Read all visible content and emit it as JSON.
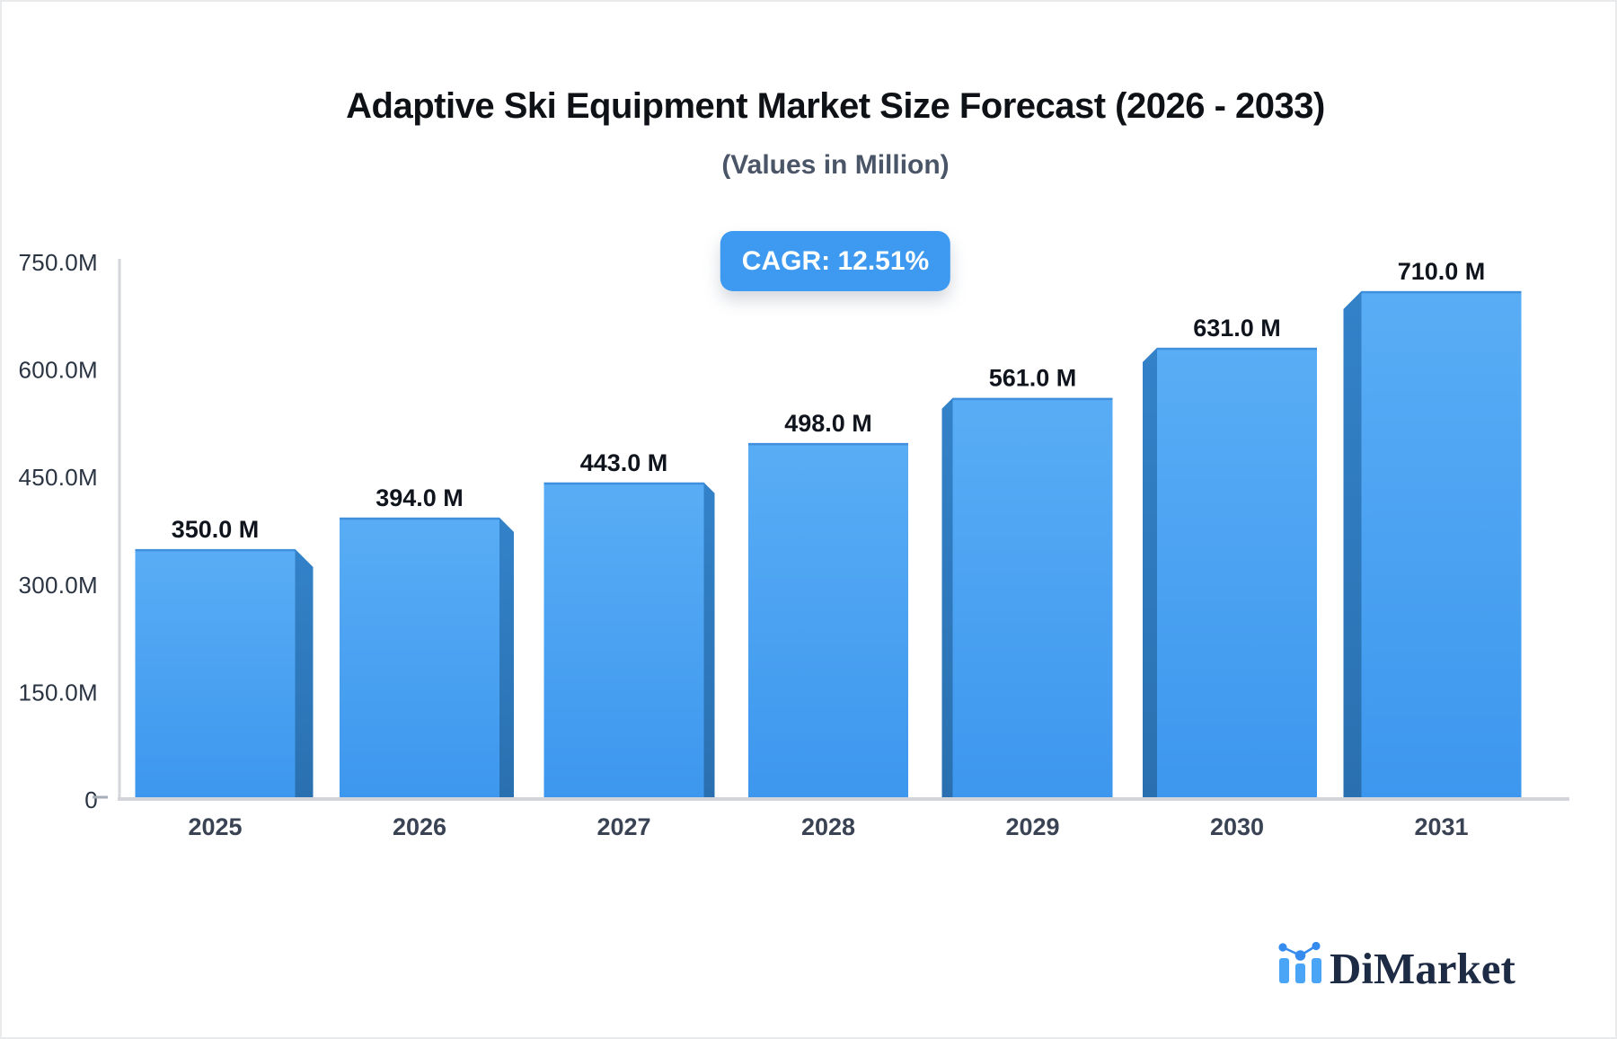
{
  "header": {
    "title": "Adaptive Ski Equipment Market Size Forecast (2026 - 2033)",
    "subtitle": "(Values in Million)",
    "cagr_label": "CAGR: 12.51%",
    "badge_color": "#3d9af0"
  },
  "chart_data": {
    "type": "bar",
    "title": "Adaptive Ski Equipment Market Size Forecast (2026 - 2033)",
    "subtitle": "(Values in Million)",
    "cagr": "12.51%",
    "categories": [
      "2025",
      "2026",
      "2027",
      "2028",
      "2029",
      "2030",
      "2031"
    ],
    "values": [
      350,
      394,
      443,
      498,
      561,
      631,
      710
    ],
    "bar_labels": [
      "350.0 M",
      "394.0 M",
      "443.0 M",
      "498.0 M",
      "561.0 M",
      "631.0 M",
      "710.0 M"
    ],
    "unit": "Million",
    "y_ticks": [
      {
        "value": 0,
        "label": "0"
      },
      {
        "value": 150,
        "label": "150.0M"
      },
      {
        "value": 300,
        "label": "300.0M"
      },
      {
        "value": 450,
        "label": "450.0M"
      },
      {
        "value": 600,
        "label": "600.0M"
      },
      {
        "value": 750,
        "label": "750.0M"
      }
    ],
    "ylim": [
      0,
      750
    ],
    "grid": false,
    "legend": false,
    "style_3d": true,
    "colors": {
      "bar_face_top": "#59adf5",
      "bar_face_bottom": "#3d97ee",
      "bar_top_edge": "#3a87d4",
      "bar_side_top": "#3382c9",
      "bar_side_bottom": "#2a70b0",
      "axis_line": "#d3d5da",
      "zero_tick": "#a8aeb8",
      "y_label_color": "#2a3442",
      "x_label_color": "#3a4353",
      "value_label_color": "#10151d"
    }
  },
  "footer": {
    "brand": "DiMarket",
    "brand_color": "#1e2b45",
    "logo_icon": "bar-line-chart-icon",
    "logo_bar_color": "#4ba5f6",
    "logo_dot_color": "#368bee"
  }
}
